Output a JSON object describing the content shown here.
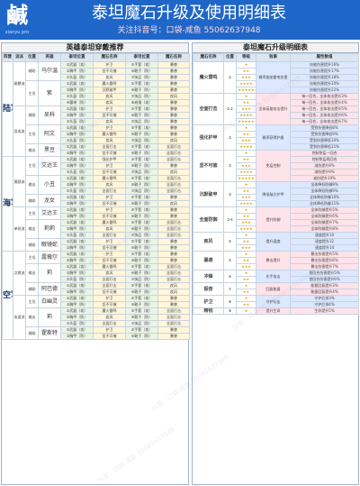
{
  "header": {
    "title": "泰坦魔石升级及使用明细表",
    "subtitle": "关注抖音号：口袋-咸鱼 550626379​48",
    "logo_text": "鹹",
    "logo_sub": "xianyu pro"
  },
  "left": {
    "title": "英雄泰坦穿戴推荐",
    "headers": [
      "阵营",
      "流派",
      "位置",
      "英雄",
      "泰坦位置",
      "魔石名称",
      "泰坦位置",
      "魔石名称"
    ],
    "camps": [
      {
        "name": "陆军",
        "rows": [
          {
            "school": "磁暴流",
            "role": "辅助",
            "hero": "马尔温",
            "slots": [
              [
                "①武器（攻）",
                "护卫"
              ],
              [
                "②胸甲（防）",
                "坚不可摧"
              ],
              [
                "③头盔（防）",
                "疾风"
              ]
            ],
            "names": [
              [
                "⑤手套（攻）",
                "暴袭"
              ],
              [
                "⑥靴子（防）",
                "暴袭"
              ],
              [
                "⑦饰品（防）",
                "暴袭"
              ]
            ]
          },
          {
            "school": "磁暴流",
            "role": "主坦",
            "hero": "紫",
            "slots": [
              [
                "①武器（攻）",
                "魔火雷鸣"
              ],
              [
                "②胸甲（防）",
                "沉默破甲"
              ],
              [
                "③头盔（防）",
                "疾风"
              ],
              [
                "④腰带（防）",
                "疾风"
              ]
            ],
            "names": [
              [
                "⑤手套（攻）",
                "暴袭"
              ],
              [
                "⑥靴子（防）",
                "暴袭"
              ],
              [
                "⑦饰品（防）",
                "疾风"
              ],
              [
                "⑧戒指（攻）",
                "暴袭"
              ]
            ]
          },
          {
            "school": "双攻流",
            "role": "辅助",
            "hero": "吴科",
            "slots": [
              [
                "①武器（攻）",
                "护卫"
              ],
              [
                "②胸甲（防）",
                "坚不可摧"
              ],
              [
                "③头盔（防）",
                "疾风"
              ]
            ],
            "names": [
              [
                "⑤手套（攻）",
                "暴袭"
              ],
              [
                "⑥靴子（防）",
                "暴袭"
              ],
              [
                "⑦饰品（防）",
                "暴袭"
              ]
            ]
          },
          {
            "school": "双攻流",
            "role": "主坦",
            "hero": "阿文",
            "slots": [
              [
                "①武器（攻）",
                "护卫"
              ],
              [
                "②胸甲（防）",
                "魔火雷鸣"
              ],
              [
                "③头盔（防）",
                "疾风"
              ]
            ],
            "names": [
              [
                "⑤手套（攻）",
                "暴袭"
              ],
              [
                "⑥靴子（防）",
                "暴袭"
              ],
              [
                "⑦饰品（防）",
                "疾风"
              ]
            ]
          },
          {
            "school": "双攻流",
            "role": "输出",
            "hero": "黑豆",
            "slots": [
              [
                "①武器（攻）",
                "全面打击"
              ],
              [
                "②胸甲（防）",
                "坚不可摧"
              ]
            ],
            "names": [
              [
                "⑤手套（攻）",
                "全面打击"
              ],
              [
                "⑥靴子（防）",
                "全面打击"
              ]
            ]
          }
        ]
      },
      {
        "name": "海军",
        "rows": [
          {
            "school": "黄鹂流",
            "role": "主坦",
            "hero": "艾达王",
            "slots": [
              [
                "①武器（攻）",
                "强化护甲"
              ],
              [
                "②胸甲（防）",
                "护卫"
              ],
              [
                "③头盔（防）",
                "坚不可摧"
              ]
            ],
            "names": [
              [
                "⑤手套（攻）",
                "全面打击"
              ],
              [
                "⑥靴子（防）",
                "暴袭"
              ],
              [
                "⑦饰品（防）",
                "疾风"
              ]
            ]
          },
          {
            "school": "黄鹂流",
            "role": "输出",
            "hero": "小丑",
            "slots": [
              [
                "①武器（攻）",
                "魔火雷鸣"
              ],
              [
                "②胸甲（防）",
                "疾风"
              ],
              [
                "③头盔（防）",
                "全面打击"
              ]
            ],
            "names": [
              [
                "⑤手套（攻）",
                "全面打击"
              ],
              [
                "⑥靴子（防）",
                "全面打击"
              ],
              [
                "⑦饰品（防）",
                "全面打击"
              ]
            ]
          },
          {
            "school": "黄鹂流",
            "role": "辅助",
            "hero": "龙女",
            "slots": [
              [
                "①武器（攻）",
                "护卫"
              ],
              [
                "②胸甲（防）",
                "坚不可摧"
              ]
            ],
            "names": [
              [
                "⑤手套（攻）",
                "暴袭"
              ],
              [
                "⑥靴子（防）",
                "疾风"
              ]
            ]
          },
          {
            "school": "单核流",
            "role": "主坦",
            "hero": "艾达王",
            "slots": [
              [
                "①武器（攻）",
                "护卫"
              ],
              [
                "②胸甲（防）",
                "坚不可摧"
              ]
            ],
            "names": [
              [
                "⑤手套（攻）",
                "暴袭"
              ],
              [
                "⑥靴子（防）",
                "暴袭"
              ]
            ]
          },
          {
            "school": "单核流",
            "role": "输出",
            "hero": "莉莉",
            "slots": [
              [
                "①武器（攻）",
                "魔火雷鸣"
              ],
              [
                "②胸甲（防）",
                "疾风"
              ],
              [
                "③头盔（防）",
                "全面打击"
              ]
            ],
            "names": [
              [
                "⑤手套（攻）",
                "全面打击"
              ],
              [
                "⑥靴子（防）",
                "全面打击"
              ],
              [
                "⑦饰品（防）",
                "全面打击"
              ]
            ]
          },
          {
            "school": "单核流",
            "role": "辅助",
            "hero": "眼镜蛇",
            "slots": [
              [
                "①武器（攻）",
                "护卫"
              ],
              [
                "②胸甲（防）",
                "坚不可摧"
              ]
            ],
            "names": [
              [
                "⑤手套（攻）",
                "暴袭"
              ],
              [
                "⑥靴子（防）",
                "暴袭"
              ]
            ]
          }
        ]
      },
      {
        "name": "空军",
        "rows": [
          {
            "school": "点燃流",
            "role": "主坦",
            "hero": "露薇尔",
            "slots": [
              [
                "①武器（攻）",
                "护卫"
              ],
              [
                "②胸甲（防）",
                "坚不可摧"
              ]
            ],
            "names": [
              [
                "⑤手套（攻）",
                "暴袭"
              ],
              [
                "⑥靴子（防）",
                "暴袭"
              ]
            ]
          },
          {
            "school": "点燃流",
            "role": "输出",
            "hero": "莉",
            "slots": [
              [
                "①武器（攻）",
                "魔火雷鸣"
              ],
              [
                "②胸甲（防）",
                "疾风"
              ],
              [
                "③头盔（防）",
                "全面打击"
              ]
            ],
            "names": [
              [
                "⑤手套（攻）",
                "全面打击"
              ],
              [
                "⑥靴子（防）",
                "全面打击"
              ],
              [
                "⑦饰品（防）",
                "全面打击"
              ]
            ]
          },
          {
            "school": "点燃流",
            "role": "辅助",
            "hero": "阿巴德",
            "slots": [
              [
                "①武器（攻）",
                "全面打击"
              ],
              [
                "②胸甲（防）",
                "坚不可摧"
              ]
            ],
            "names": [
              [
                "⑤手套（攻）",
                "疾风"
              ],
              [
                "⑥靴子（防）",
                "疾风"
              ]
            ]
          },
          {
            "school": "攻速流",
            "role": "主坦",
            "hero": "白幽灵",
            "slots": [
              [
                "①武器（攻）",
                "护卫"
              ],
              [
                "②胸甲（防）",
                "坚不可摧"
              ]
            ],
            "names": [
              [
                "⑤手套（攻）",
                "暴袭"
              ],
              [
                "⑥靴子（防）",
                "暴袭"
              ]
            ]
          },
          {
            "school": "攻速流",
            "role": "输出",
            "hero": "莉",
            "slots": [
              [
                "①武器（攻）",
                "魔火雷鸣"
              ],
              [
                "②胸甲（防）",
                "疾风"
              ],
              [
                "③头盔（防）",
                "全面打击"
              ]
            ],
            "names": [
              [
                "⑤手套（攻）",
                "全面打击"
              ],
              [
                "⑥靴子（防）",
                "全面打击"
              ],
              [
                "⑦饰品（防）",
                "全面打击"
              ]
            ]
          },
          {
            "school": "攻速流",
            "role": "辅助",
            "hero": "霍斯特",
            "slots": [
              [
                "①武器（攻）",
                "护卫"
              ],
              [
                "②胸甲（防）",
                "坚不可摧"
              ]
            ],
            "names": [
              [
                "⑤手套（攻）",
                "暴袭"
              ],
              [
                "⑥靴子（防）",
                "暴袭"
              ]
            ]
          }
        ]
      }
    ]
  },
  "right": {
    "title": "泰坦魔石升级明细表",
    "headers": [
      "魔石名称",
      "位置",
      "等级",
      "效果",
      "属性数值"
    ],
    "groups": [
      {
        "name": "魔火雷鸣",
        "pos": "①",
        "color": "blue",
        "effect": "概率施加雷电伤害",
        "rows": [
          [
            "★",
            "技能伤害提升16%"
          ],
          [
            "★★",
            "技能伤害提升17%"
          ],
          [
            "★★★",
            "技能伤害提升18%"
          ],
          [
            "★★★★",
            "技能伤害提升20%"
          ],
          [
            "★★★★★",
            "技能伤害提升22%"
          ]
        ]
      },
      {
        "name": "全面打击",
        "pos": "①②",
        "color": "pink",
        "effect": "全体英雄攻击提升",
        "rows": [
          [
            "★",
            "每一回合，全体攻击提升3%"
          ],
          [
            "★★",
            "每一回合，全体攻击提升4%"
          ],
          [
            "★★★",
            "每一回合，全体攻击提升5%"
          ],
          [
            "★★★★",
            "每一回合，全体攻击提升6%"
          ],
          [
            "★★★★★",
            "每一回合，全体攻击提升7%"
          ]
        ]
      },
      {
        "name": "强化护甲",
        "pos": "②",
        "color": "blue",
        "effect": "概率获得护盾",
        "rows": [
          [
            "★",
            "受到伤害降低8%"
          ],
          [
            "★★",
            "受到伤害降低9%"
          ],
          [
            "★★★",
            "受到伤害降低10%"
          ],
          [
            "★★★★",
            "受到伤害降低11%"
          ]
        ]
      },
      {
        "name": "坚不可摧",
        "pos": "②",
        "color": "pink",
        "effect": "免疫控制",
        "rows": [
          [
            "★",
            "控制免疫一回合"
          ],
          [
            "★★",
            "控制免疫两回合"
          ],
          [
            "★★★",
            "减伤提升8%"
          ],
          [
            "★★★★",
            "减伤提升9%"
          ],
          [
            "★★★★★",
            "减伤提升10%"
          ]
        ]
      },
      {
        "name": "沉默破甲",
        "pos": "③",
        "color": "blue",
        "effect": "降低敌方护甲",
        "rows": [
          [
            "★",
            "全体降低防御8%"
          ],
          [
            "★★",
            "全体降低防御9%"
          ],
          [
            "★★★",
            "全体降低防御10%"
          ],
          [
            "★★★★",
            "全体降低防御11%"
          ]
        ]
      },
      {
        "name": "全面防御",
        "pos": "③④",
        "color": "pink",
        "effect": "提升防御",
        "rows": [
          [
            "★",
            "全体防御提升5%"
          ],
          [
            "★★",
            "全体防御提升6%"
          ],
          [
            "★★★",
            "全体防御提升7%"
          ],
          [
            "★★★★",
            "全体防御提升8%"
          ]
        ]
      },
      {
        "name": "疾风",
        "pos": "④",
        "color": "blue",
        "effect": "提升速度",
        "rows": [
          [
            "★",
            "速度提升10"
          ],
          [
            "★★",
            "速度提升12"
          ],
          [
            "★★★",
            "速度提升14"
          ]
        ]
      },
      {
        "name": "暴袭",
        "pos": "⑤",
        "color": "pink",
        "effect": "暴击提升",
        "rows": [
          [
            "★",
            "暴击伤害提升5%"
          ],
          [
            "★★",
            "暴击伤害提升6%"
          ],
          [
            "★★★",
            "暴击伤害提升7%"
          ]
        ]
      },
      {
        "name": "冲锋",
        "pos": "⑥",
        "color": "blue",
        "effect": "先手攻击",
        "rows": [
          [
            "★",
            "首回合伤害提升5%"
          ],
          [
            "★★",
            "首回合伤害提升6%"
          ]
        ]
      },
      {
        "name": "振奋",
        "pos": "⑦",
        "color": "pink",
        "effect": "回复能量",
        "rows": [
          [
            "★",
            "能量回复提升3%"
          ],
          [
            "★★",
            "能量回复提升4%"
          ]
        ]
      },
      {
        "name": "护卫",
        "pos": "⑧",
        "color": "blue",
        "effect": "守护队友",
        "rows": [
          [
            "★",
            "守护后排3%"
          ],
          [
            "★★",
            "守护后排4%"
          ]
        ]
      },
      {
        "name": "精锐",
        "pos": "⑧",
        "color": "pink",
        "effect": "提升生命",
        "rows": [
          [
            "★",
            "生命提升5%"
          ]
        ]
      }
    ]
  },
  "watermark": "抖音：口袋-咸鱼 55062637948"
}
